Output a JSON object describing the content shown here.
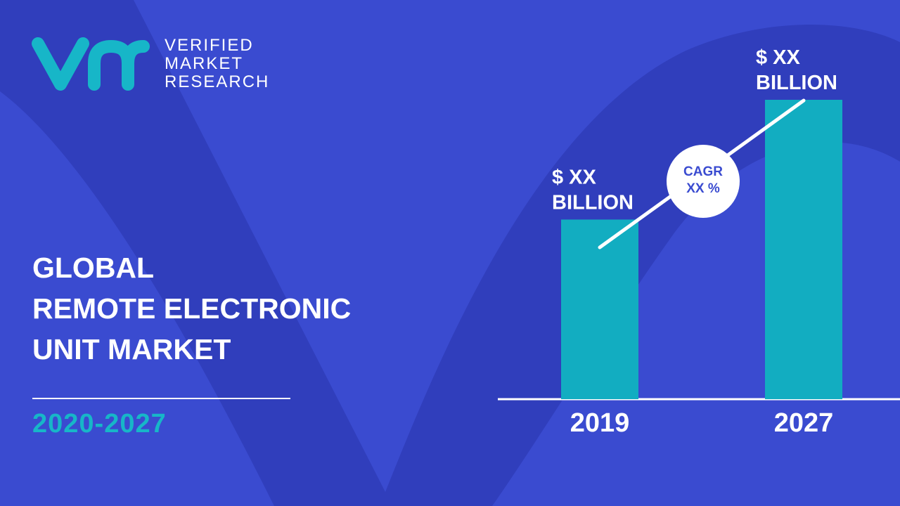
{
  "brand": {
    "line1": "VERIFIED",
    "line2": "MARKET",
    "line3": "RESEARCH",
    "logo_icon": "vmr-monogram-icon",
    "logo_color": "#17b6c8"
  },
  "title": {
    "line1": "GLOBAL",
    "line2": "REMOTE ELECTRONIC",
    "line3": "UNIT MARKET"
  },
  "period": "2020-2027",
  "colors": {
    "background": "#3a4bd0",
    "background_shape": "#2f3cb8",
    "bar": "#12adc1",
    "text": "#ffffff",
    "accent": "#17b6c8"
  },
  "chart_data": {
    "type": "bar",
    "categories": [
      "2019",
      "2027"
    ],
    "values": [
      0.6,
      1.0
    ],
    "value_labels": [
      [
        "$ XX",
        "BILLION"
      ],
      [
        "$ XX",
        "BILLION"
      ]
    ],
    "ylim": [
      0,
      1.0
    ],
    "grid": false,
    "legend": "none",
    "annotations": [
      {
        "type": "trend-arrow",
        "text_lines": [
          "CAGR",
          "XX %"
        ]
      }
    ]
  }
}
